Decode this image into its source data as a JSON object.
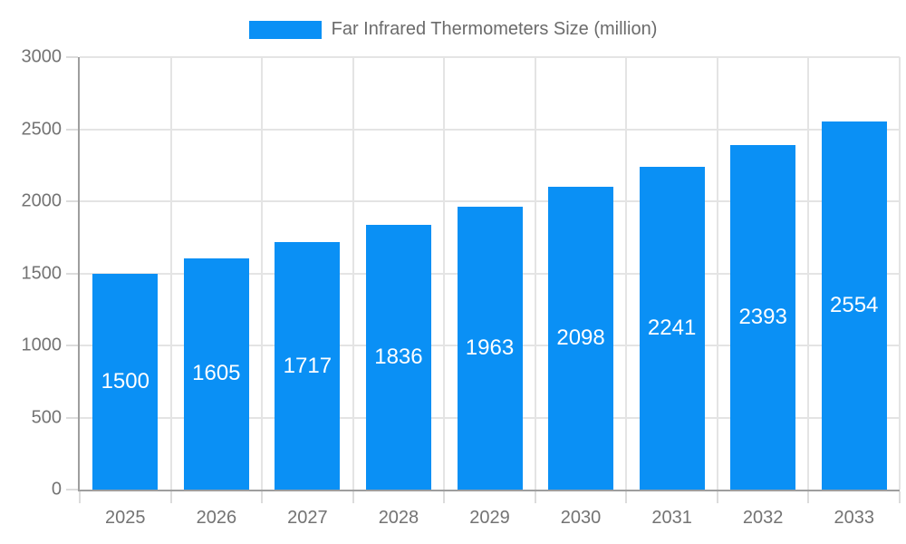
{
  "chart_data": {
    "type": "bar",
    "title": "Far Infrared Thermometers Size (million)",
    "categories": [
      "2025",
      "2026",
      "2027",
      "2028",
      "2029",
      "2030",
      "2031",
      "2032",
      "2033"
    ],
    "values": [
      1500,
      1605,
      1717,
      1836,
      1963,
      2098,
      2241,
      2393,
      2554
    ],
    "ylim": [
      0,
      3000
    ],
    "yticks": [
      0,
      500,
      1000,
      1500,
      2000,
      2500,
      3000
    ],
    "grid": true,
    "legend_position": "top-center",
    "value_labels_position": "inside-center",
    "colors": {
      "bar": "#0A90F5",
      "grid": "#E4E4E4",
      "axis": "#9E9E9E",
      "tick_mark": "#DCDCDC",
      "tick_text": "#737373",
      "legend_text": "#6B6B6B",
      "value_label_text": "#FFFFFF",
      "background": "#FFFFFF"
    }
  }
}
